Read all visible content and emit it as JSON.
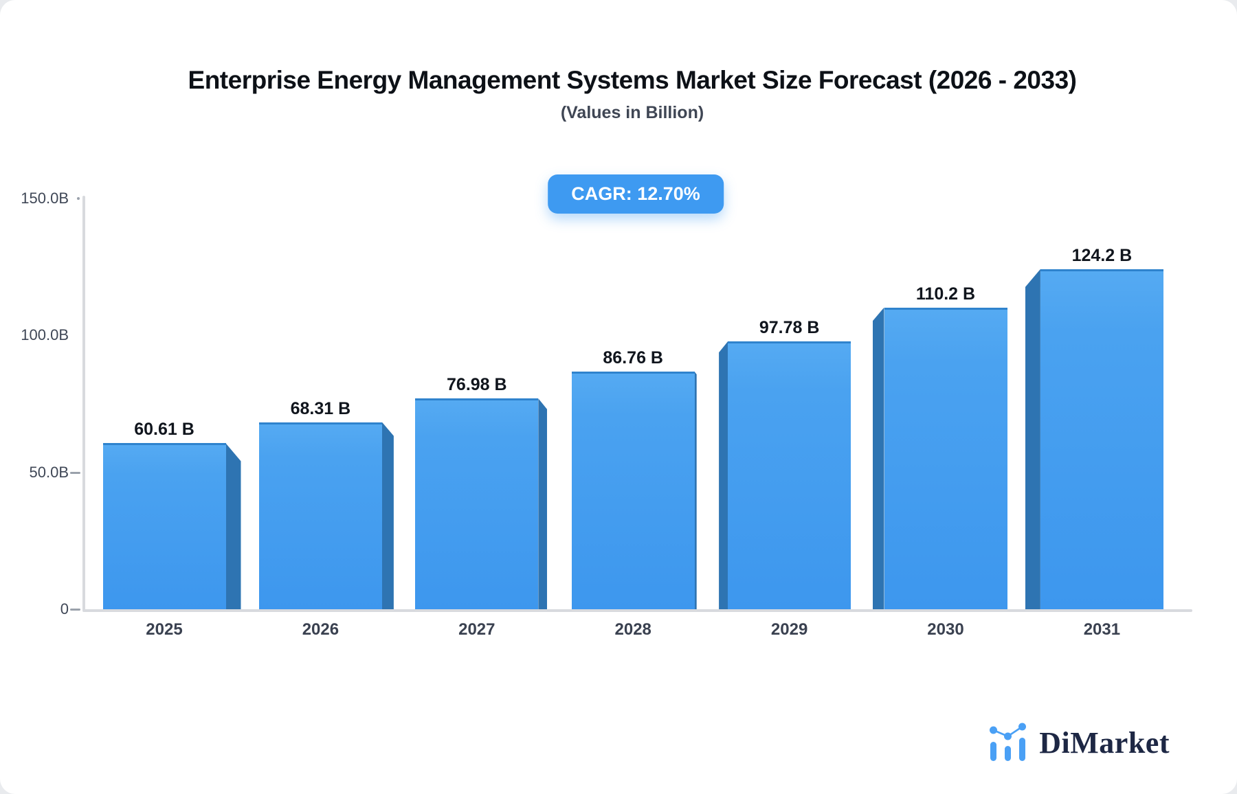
{
  "header": {
    "title": "Enterprise Energy Management Systems Market Size Forecast (2026 - 2033)",
    "subtitle": "(Values in Billion)",
    "cagr_badge": "CAGR: 12.70%"
  },
  "colors": {
    "accent_blue": "#3e9af1",
    "bar_top": "#4fa6f1",
    "bar_bottom": "#3d97ee",
    "bar_side": "#2e74b2",
    "axis_gray": "#d8dade",
    "logo_navy": "#1d2744",
    "logo_blue": "#4aa0f5"
  },
  "chart_data": {
    "type": "bar",
    "title": "Enterprise Energy Management Systems Market Size Forecast (2026 - 2033)",
    "subtitle": "(Values in Billion)",
    "xlabel": "",
    "ylabel": "",
    "ylim": [
      0,
      150
    ],
    "grid": false,
    "legend": "none",
    "categories": [
      "2025",
      "2026",
      "2027",
      "2028",
      "2029",
      "2030",
      "2031"
    ],
    "values": [
      60.61,
      68.31,
      76.98,
      86.76,
      97.78,
      110.2,
      124.2
    ],
    "value_labels": [
      "60.61 B",
      "68.31 B",
      "76.98 B",
      "86.76 B",
      "97.78 B",
      "110.2 B",
      "124.2 B"
    ],
    "yticks": [
      {
        "label": "150.0B",
        "value": 150,
        "mark": "dot"
      },
      {
        "label": "100.0B",
        "value": 100,
        "mark": "none"
      },
      {
        "label": "50.0B",
        "value": 50,
        "mark": "dash"
      },
      {
        "label": "0",
        "value": 0,
        "mark": "dash"
      }
    ]
  },
  "branding": {
    "logo_text": "DiMarket",
    "logo_icon": "mini-bar-chart-icon"
  }
}
